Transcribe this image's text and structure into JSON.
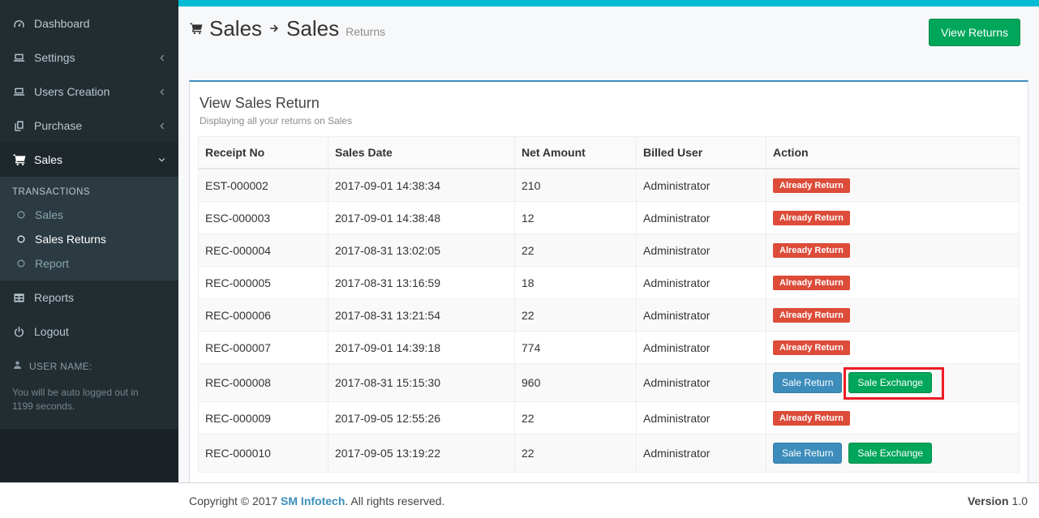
{
  "theme": {
    "topbar": "#00bcd4",
    "sidebar_bg": "#222d32",
    "sidebar_active_bg": "#1e282c",
    "submenu_bg": "#2c3b41",
    "content_bg": "#f7f8fa",
    "accent": "#3c8dbc",
    "success": "#00a65a",
    "danger": "#dd4b39",
    "annotation": "#ed1c24"
  },
  "sidebar": {
    "items": [
      {
        "label": "Dashboard",
        "icon": "dashboard-icon"
      },
      {
        "label": "Settings",
        "icon": "laptop-icon",
        "chevron": "left"
      },
      {
        "label": "Users Creation",
        "icon": "laptop-icon",
        "chevron": "left"
      },
      {
        "label": "Purchase",
        "icon": "copy-icon",
        "chevron": "left"
      },
      {
        "label": "Sales",
        "icon": "cart-icon",
        "chevron": "down",
        "active": true
      }
    ],
    "section_label": "TRANSACTIONS",
    "sub_items": [
      {
        "label": "Sales",
        "icon": "circle-icon"
      },
      {
        "label": "Sales Returns",
        "icon": "circle-icon",
        "active": true
      },
      {
        "label": "Report",
        "icon": "circle-icon"
      }
    ],
    "bottom_items": [
      {
        "label": "Reports",
        "icon": "table-icon"
      },
      {
        "label": "Logout",
        "icon": "power-icon"
      }
    ],
    "user_icon": "user-icon",
    "user_label": "USER NAME:",
    "logout_note": "You will be auto logged out in 1199 seconds."
  },
  "header": {
    "icon": "cart-icon",
    "crumb_primary": "Sales",
    "arrow_icon": "arrow-right-icon",
    "crumb_secondary": "Sales",
    "crumb_sub": "Returns",
    "view_returns_button": "View Returns"
  },
  "panel": {
    "title": "View Sales Return",
    "subtitle": "Displaying all your returns on Sales"
  },
  "table": {
    "columns": [
      "Receipt No",
      "Sales Date",
      "Net Amount",
      "Billed User",
      "Action"
    ],
    "rows": [
      {
        "receipt": "EST-000002",
        "date": "2017-09-01 14:38:34",
        "amount": "210",
        "user": "Administrator",
        "actions": [
          {
            "label": "Already Return",
            "type": "status"
          }
        ]
      },
      {
        "receipt": "ESC-000003",
        "date": "2017-09-01 14:38:48",
        "amount": "12",
        "user": "Administrator",
        "actions": [
          {
            "label": "Already Return",
            "type": "status"
          }
        ]
      },
      {
        "receipt": "REC-000004",
        "date": "2017-08-31 13:02:05",
        "amount": "22",
        "user": "Administrator",
        "actions": [
          {
            "label": "Already Return",
            "type": "status"
          }
        ]
      },
      {
        "receipt": "REC-000005",
        "date": "2017-08-31 13:16:59",
        "amount": "18",
        "user": "Administrator",
        "actions": [
          {
            "label": "Already Return",
            "type": "status"
          }
        ]
      },
      {
        "receipt": "REC-000006",
        "date": "2017-08-31 13:21:54",
        "amount": "22",
        "user": "Administrator",
        "actions": [
          {
            "label": "Already Return",
            "type": "status"
          }
        ]
      },
      {
        "receipt": "REC-000007",
        "date": "2017-09-01 14:39:18",
        "amount": "774",
        "user": "Administrator",
        "actions": [
          {
            "label": "Already Return",
            "type": "status"
          }
        ]
      },
      {
        "receipt": "REC-000008",
        "date": "2017-08-31 15:15:30",
        "amount": "960",
        "user": "Administrator",
        "actions": [
          {
            "label": "Sale Return",
            "type": "primary"
          },
          {
            "label": "Sale Exchange",
            "type": "success",
            "highlighted": true
          }
        ]
      },
      {
        "receipt": "REC-000009",
        "date": "2017-09-05 12:55:26",
        "amount": "22",
        "user": "Administrator",
        "actions": [
          {
            "label": "Already Return",
            "type": "status"
          }
        ]
      },
      {
        "receipt": "REC-000010",
        "date": "2017-09-05 13:19:22",
        "amount": "22",
        "user": "Administrator",
        "actions": [
          {
            "label": "Sale Return",
            "type": "primary"
          },
          {
            "label": "Sale Exchange",
            "type": "success"
          }
        ]
      }
    ]
  },
  "footer": {
    "copyright_prefix": "Copyright © 2017",
    "company": "SM Infotech",
    "copyright_suffix": ". All rights reserved.",
    "version_label": "Version",
    "version_value": "1.0"
  }
}
